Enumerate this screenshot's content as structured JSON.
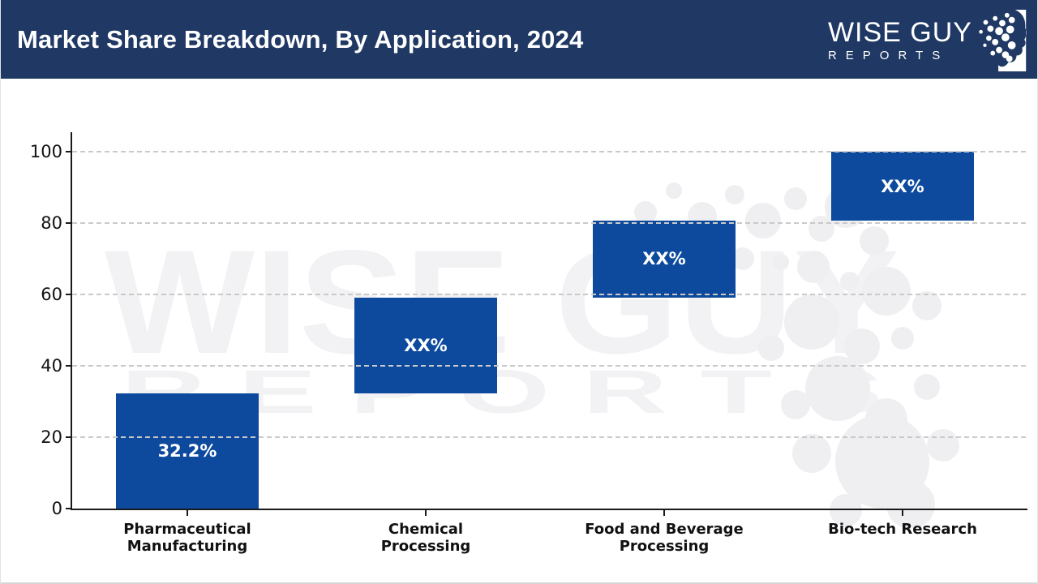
{
  "header": {
    "title": "Market Share Breakdown, By Application, 2024",
    "bg_color": "#1f3864",
    "logo": {
      "line1": "WISE GUY",
      "line2": "REPORTS"
    }
  },
  "watermark": {
    "line1": "WISE GUY",
    "line2": "R E P O R T S"
  },
  "chart_data": {
    "type": "bar",
    "variant": "waterfall",
    "title": "Market Share Breakdown, By Application, 2024",
    "categories": [
      "Pharmaceutical Manufacturing",
      "Chemical Processing",
      "Food and Beverage Processing",
      "Bio-tech Research"
    ],
    "category_lines": [
      [
        "Pharmaceutical",
        "Manufacturing"
      ],
      [
        "Chemical",
        "Processing"
      ],
      [
        "Food and Beverage",
        "Processing"
      ],
      [
        "Bio-tech Research"
      ]
    ],
    "segments": [
      {
        "start": 0,
        "end": 32.2,
        "label": "32.2%"
      },
      {
        "start": 32.2,
        "end": 59.2,
        "label": "XX%"
      },
      {
        "start": 59.2,
        "end": 80.6,
        "label": "XX%"
      },
      {
        "start": 80.6,
        "end": 100,
        "label": "XX%"
      }
    ],
    "xlabel": "",
    "ylabel": "",
    "yticks": [
      0,
      20,
      40,
      60,
      80,
      100
    ],
    "ylim": [
      0,
      106
    ],
    "grid": "horizontal-dashed",
    "legend": "none",
    "bar_color": "#0d4a9e",
    "bar_label_color": "#ffffff",
    "axis_color": "#1a1a1a",
    "gridline_color": "#c9c9c9"
  }
}
